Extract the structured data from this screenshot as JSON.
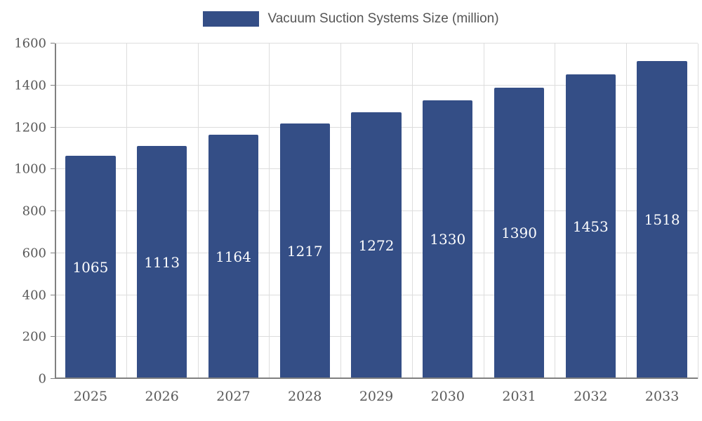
{
  "chart_data": {
    "type": "bar",
    "title": "Vacuum Suction Systems Size (million)",
    "categories": [
      "2025",
      "2026",
      "2027",
      "2028",
      "2029",
      "2030",
      "2031",
      "2032",
      "2033"
    ],
    "values": [
      1065,
      1113,
      1164,
      1217,
      1272,
      1330,
      1390,
      1453,
      1518
    ],
    "yticks": [
      0,
      200,
      400,
      600,
      800,
      1000,
      1200,
      1400,
      1600
    ],
    "ylim": [
      0,
      1600
    ],
    "grid": true,
    "legend_position": "top-center",
    "bar_color": "#344e86",
    "bar_label_color": "#ffffff",
    "axis_text_color": "#595959",
    "grid_color": "#dddddd",
    "spine_color": "#808080"
  }
}
